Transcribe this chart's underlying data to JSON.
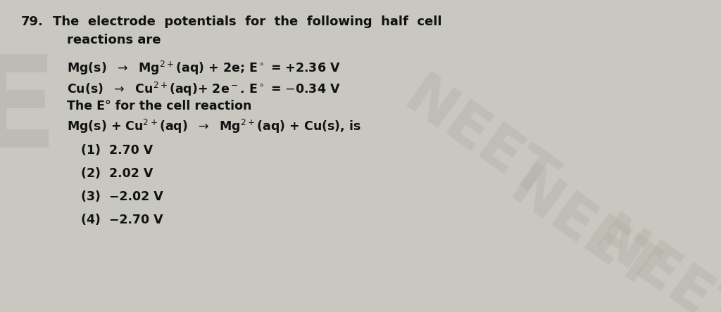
{
  "background_color": "#c8c7c0",
  "text_color": "#111111",
  "watermark_color": "#aaa89e",
  "question_number": "79.",
  "title_line1": "The  electrode  potentials  for  the  following  half  cell",
  "title_line2": "reactions are",
  "line1_plain": "Mg(s)  →  Mg",
  "line1_sup1": "2+",
  "line1_rest": "(aq) + 2e; E° = +2.36 V",
  "line2_plain": "Cu(s)  →  Cu",
  "line2_sup1": "2+",
  "line2_rest": "(aq)+ 2e⁻. E° = −0.34 V",
  "line3": "The E° for the cell reaction",
  "line4_plain": "Mg(s) + Cu",
  "line4_sup1": "2+",
  "line4_mid": "(aq)  →  Mg",
  "line4_sup2": "2+",
  "line4_rest": "(aq) + Cu(s), is",
  "opt1": "(1)  2.70 V",
  "opt2": "(2)  2.02 V",
  "opt3": "(3)  −2.02 V",
  "opt4": "(4)  −2.70 V",
  "font_size_title": 13,
  "font_size_body": 12.5,
  "font_size_opt": 12.5,
  "font_family": "DejaVu Sans"
}
